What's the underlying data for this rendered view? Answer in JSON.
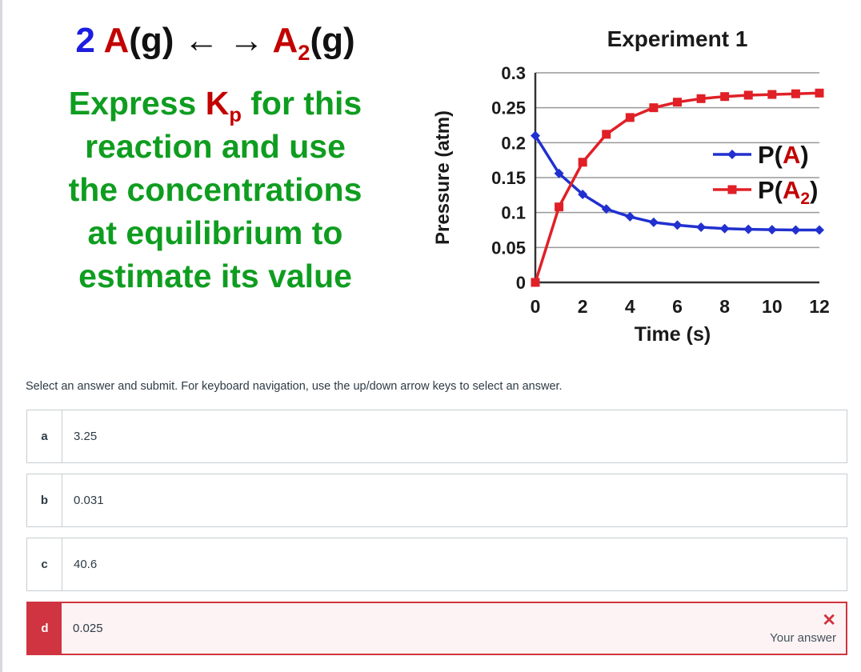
{
  "question": {
    "equation": {
      "coefficient": "2",
      "species_a": "A",
      "state_a": "(g)",
      "arrows": "← →",
      "species_a2": "A",
      "sub_a2": "2",
      "state_a2": "(g)"
    },
    "prompt": {
      "line1_pre": "Express ",
      "kp_main": "K",
      "kp_sub": "p",
      "line1_post": " for this",
      "line2": "reaction and use",
      "line3": "the concentrations",
      "line4": "at equilibrium to",
      "line5": "estimate its value"
    }
  },
  "chart_data": {
    "type": "line",
    "title": "Experiment 1",
    "xlabel": "Time (s)",
    "ylabel": "Pressure (atm)",
    "xlim": [
      0,
      12
    ],
    "ylim": [
      0,
      0.3
    ],
    "xticks": [
      0,
      2,
      4,
      6,
      8,
      10,
      12
    ],
    "yticks": [
      0,
      0.05,
      0.1,
      0.15,
      0.2,
      0.25,
      0.3
    ],
    "grid": true,
    "legend_position": "inside-right",
    "x": [
      0,
      1,
      2,
      3,
      4,
      5,
      6,
      7,
      8,
      9,
      10,
      11,
      12
    ],
    "series": [
      {
        "name": "P(A)",
        "color": "#2130cf",
        "marker": "diamond",
        "values": [
          0.21,
          0.156,
          0.126,
          0.105,
          0.094,
          0.086,
          0.082,
          0.079,
          0.077,
          0.076,
          0.0755,
          0.075,
          0.075
        ]
      },
      {
        "name": "P(A2)",
        "color": "#e02026",
        "marker": "square",
        "values": [
          0.0,
          0.108,
          0.172,
          0.212,
          0.236,
          0.25,
          0.258,
          0.263,
          0.266,
          0.268,
          0.269,
          0.27,
          0.271
        ]
      }
    ],
    "legend": [
      {
        "pre": "P(",
        "accent": "A",
        "sub": "",
        "post": ")"
      },
      {
        "pre": "P(",
        "accent": "A",
        "sub": "2",
        "post": ")"
      }
    ]
  },
  "quiz": {
    "instruction": "Select an answer and submit. For keyboard navigation, use the up/down arrow keys to select an answer.",
    "options": [
      {
        "letter": "a",
        "text": "3.25"
      },
      {
        "letter": "b",
        "text": "0.031"
      },
      {
        "letter": "c",
        "text": "40.6"
      },
      {
        "letter": "d",
        "text": "0.025",
        "selected": true,
        "icon": "✕",
        "badge": "Your answer"
      }
    ]
  },
  "colors": {
    "equation_blue": "#1d1de0",
    "equation_red": "#c30000",
    "prompt_green": "#0f9d20",
    "series_blue": "#2130cf",
    "series_red": "#e02026",
    "selected_red": "#cf3440",
    "selected_bg": "#fdf3f4",
    "row_border": "#c7cdd1",
    "text_dark": "#2d3b45"
  }
}
